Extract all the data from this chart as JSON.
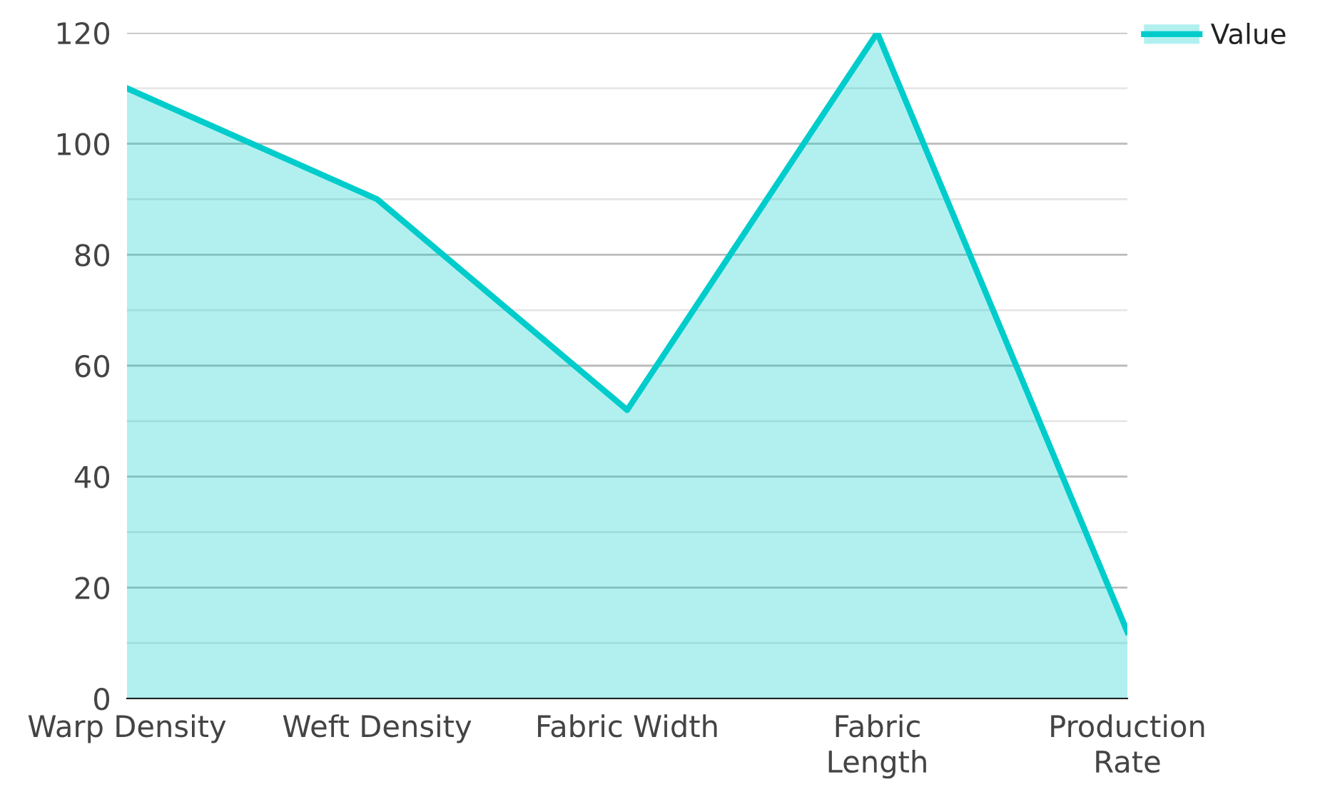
{
  "chart_data": {
    "type": "area",
    "categories": [
      "Warp Density",
      "Weft Density",
      "Fabric Width",
      "Fabric Length",
      "Production Rate"
    ],
    "series": [
      {
        "name": "Value",
        "color": "#00cccc",
        "values": [
          110,
          90,
          52,
          120,
          12
        ]
      }
    ],
    "ylim": [
      0,
      120
    ],
    "yticks": [
      0,
      20,
      40,
      60,
      80,
      100,
      120
    ],
    "grid": "y",
    "legend": "top right"
  }
}
